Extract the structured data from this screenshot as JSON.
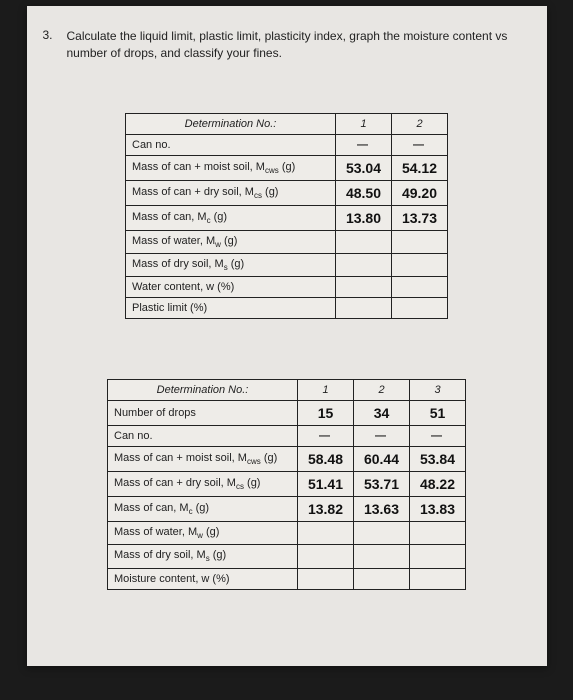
{
  "question": {
    "number": "3.",
    "text": "Calculate the liquid limit, plastic limit, plasticity index, graph the moisture content vs number of drops, and classify your fines."
  },
  "table1": {
    "header": {
      "title": "Determination No.:",
      "cols": [
        "1",
        "2"
      ]
    },
    "rows": {
      "can_no": {
        "label": "Can no.",
        "v1": "—",
        "v2": "—"
      },
      "mass_cms": {
        "label": "Mass of can + moist soil, M",
        "sub": "cws",
        "unit": "(g)",
        "v1": "53.04",
        "v2": "54.12"
      },
      "mass_cds": {
        "label": "Mass of can + dry soil, M",
        "sub": "cs",
        "unit": "(g)",
        "v1": "48.50",
        "v2": "49.20"
      },
      "mass_can": {
        "label": "Mass of can, M",
        "sub": "c",
        "unit": "(g)",
        "v1": "13.80",
        "v2": "13.73"
      },
      "mass_water": {
        "label": "Mass of water, M",
        "sub": "w",
        "unit": "(g)",
        "v1": "",
        "v2": ""
      },
      "mass_dry": {
        "label": "Mass of dry soil, M",
        "sub": "s",
        "unit": "(g)",
        "v1": "",
        "v2": ""
      },
      "water_cont": {
        "label": "Water content, w (%)",
        "v1": "",
        "v2": ""
      },
      "plastic_lim": {
        "label": "Plastic limit (%)",
        "v1": "",
        "v2": ""
      }
    }
  },
  "table2": {
    "header": {
      "title": "Determination No.:",
      "cols": [
        "1",
        "2",
        "3"
      ]
    },
    "rows": {
      "drops": {
        "label": "Number of drops",
        "v1": "15",
        "v2": "34",
        "v3": "51"
      },
      "can_no": {
        "label": "Can no.",
        "v1": "—",
        "v2": "—",
        "v3": "—"
      },
      "mass_cms": {
        "label": "Mass of can + moist soil, M",
        "sub": "cws",
        "unit": "(g)",
        "v1": "58.48",
        "v2": "60.44",
        "v3": "53.84"
      },
      "mass_cds": {
        "label": "Mass of can + dry soil, M",
        "sub": "cs",
        "unit": "(g)",
        "v1": "51.41",
        "v2": "53.71",
        "v3": "48.22"
      },
      "mass_can": {
        "label": "Mass of can, M",
        "sub": "c",
        "unit": "(g)",
        "v1": "13.82",
        "v2": "13.63",
        "v3": "13.83"
      },
      "mass_water": {
        "label": "Mass of water, M",
        "sub": "w",
        "unit": "(g)",
        "v1": "",
        "v2": "",
        "v3": ""
      },
      "mass_dry": {
        "label": "Mass of dry soil, M",
        "sub": "s",
        "unit": "(g)",
        "v1": "",
        "v2": "",
        "v3": ""
      },
      "moist_cont": {
        "label": "Moisture content, w (%)",
        "v1": "",
        "v2": "",
        "v3": ""
      }
    }
  }
}
